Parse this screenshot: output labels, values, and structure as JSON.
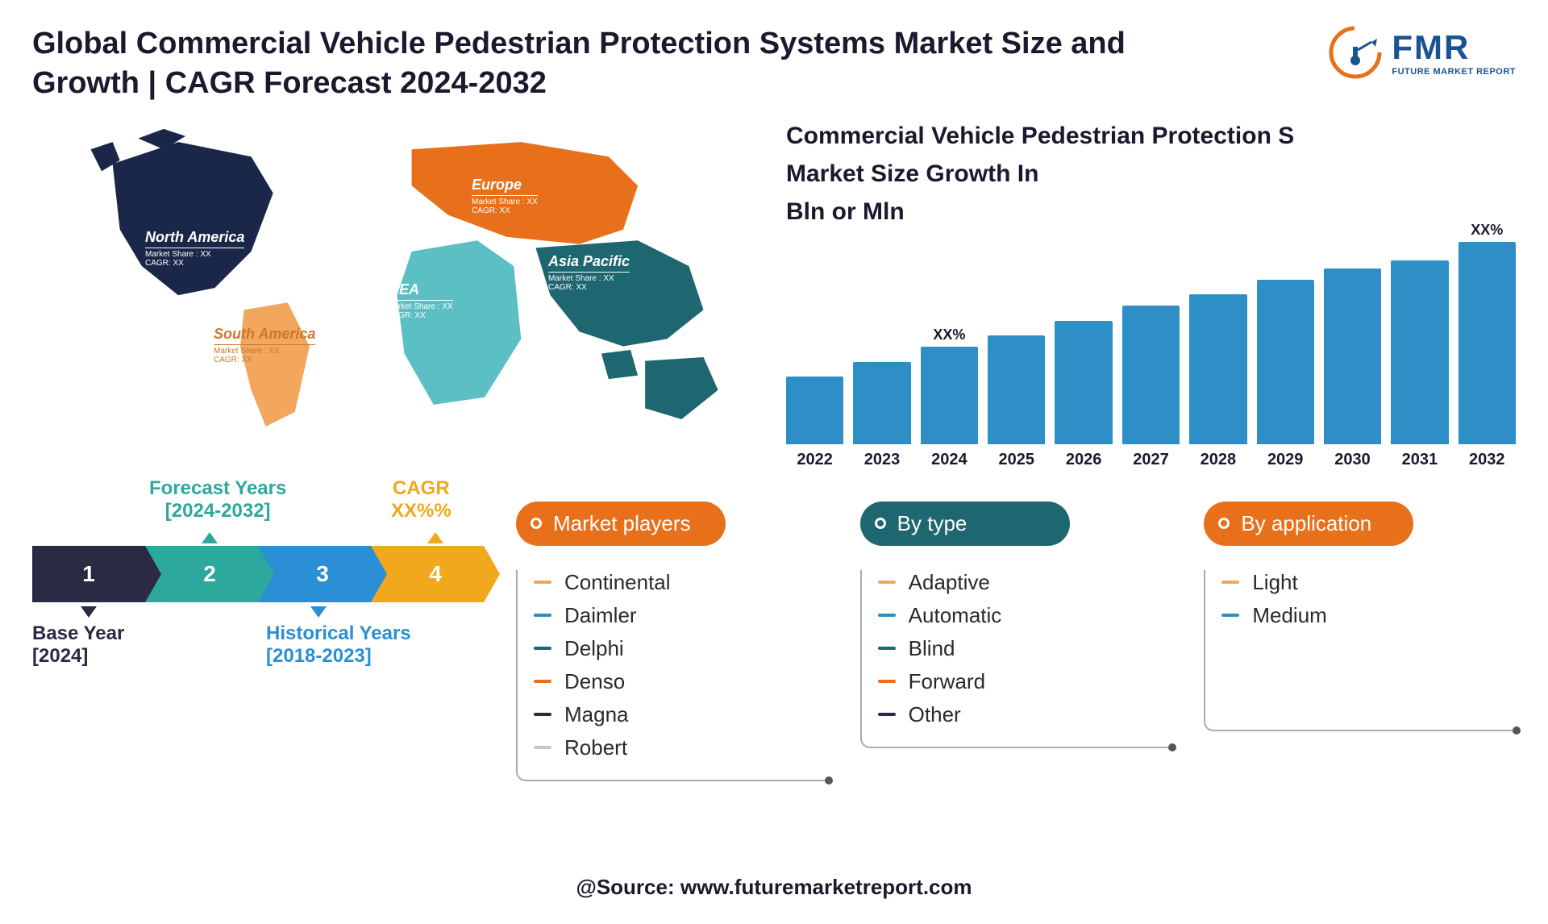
{
  "title": "Global Commercial Vehicle Pedestrian Protection Systems Market Size and Growth | CAGR Forecast 2024-2032",
  "logo": {
    "main": "FMR",
    "sub": "FUTURE MARKET REPORT"
  },
  "map": {
    "regions": [
      {
        "name": "North America",
        "share": "Market Share : XX",
        "cagr": "CAGR: XX",
        "color": "#1a2749"
      },
      {
        "name": "South America",
        "share": "Market Share : XX",
        "cagr": "CAGR: XX",
        "color": "#f2a65e"
      },
      {
        "name": "Europe",
        "share": "Market Share : XX",
        "cagr": "CAGR: XX",
        "color": "#e8701a"
      },
      {
        "name": "MEA",
        "share": "Market Share : XX",
        "cagr": "CAGR: XX",
        "color": "#5cbfc4"
      },
      {
        "name": "Asia Pacific",
        "share": "Market Share : XX",
        "cagr": "CAGR: XX",
        "color": "#1e6670"
      }
    ]
  },
  "chart": {
    "title_line1": "Commercial Vehicle Pedestrian Protection S",
    "title_line2": "Market Size Growth In",
    "title_line3": "Bln or Mln",
    "bar_color": "#2d8fc5",
    "years": [
      "2022",
      "2023",
      "2024",
      "2025",
      "2026",
      "2027",
      "2028",
      "2029",
      "2030",
      "2031",
      "2032"
    ],
    "values": [
      90,
      110,
      130,
      145,
      165,
      185,
      200,
      220,
      235,
      245,
      270
    ],
    "annotations": {
      "2024": "XX%",
      "2032": "XX%"
    },
    "ylim": [
      0,
      280
    ]
  },
  "timeline": {
    "boxes": [
      {
        "num": "1",
        "color": "#2a2a45"
      },
      {
        "num": "2",
        "color": "#2da89c"
      },
      {
        "num": "3",
        "color": "#2a8fd4"
      },
      {
        "num": "4",
        "color": "#f2a81d"
      }
    ],
    "labels": {
      "base_title": "Base Year",
      "base_value": "[2024]",
      "base_color": "#2a2a45",
      "forecast_title": "Forecast Years",
      "forecast_value": "[2024-2032]",
      "forecast_color": "#2da89c",
      "historical_title": "Historical Years",
      "historical_value": "[2018-2023]",
      "historical_color": "#2a8fd4",
      "cagr_title": "CAGR",
      "cagr_value": "XX%%",
      "cagr_color": "#f2a81d"
    }
  },
  "pills": [
    {
      "header": "Market players",
      "color": "#e8701a",
      "items": [
        {
          "label": "Continental",
          "tick": "#f2a65e"
        },
        {
          "label": "Daimler",
          "tick": "#2d8fc5"
        },
        {
          "label": "Delphi",
          "tick": "#1e6670"
        },
        {
          "label": "Denso",
          "tick": "#e8701a"
        },
        {
          "label": "Magna",
          "tick": "#2a2a45"
        },
        {
          "label": "Robert",
          "tick": "#c7c7c7"
        }
      ]
    },
    {
      "header": "By type",
      "color": "#1e6670",
      "items": [
        {
          "label": "Adaptive",
          "tick": "#f2a65e"
        },
        {
          "label": "Automatic",
          "tick": "#2d8fc5"
        },
        {
          "label": "Blind",
          "tick": "#1e6670"
        },
        {
          "label": "Forward",
          "tick": "#e8701a"
        },
        {
          "label": "Other",
          "tick": "#2a2a45"
        }
      ]
    },
    {
      "header": "By application",
      "color": "#e8701a",
      "items": [
        {
          "label": "Light",
          "tick": "#f2a65e"
        },
        {
          "label": "Medium",
          "tick": "#2d8fc5"
        }
      ]
    }
  ],
  "source": "@Source: www.futuremarketreport.com"
}
